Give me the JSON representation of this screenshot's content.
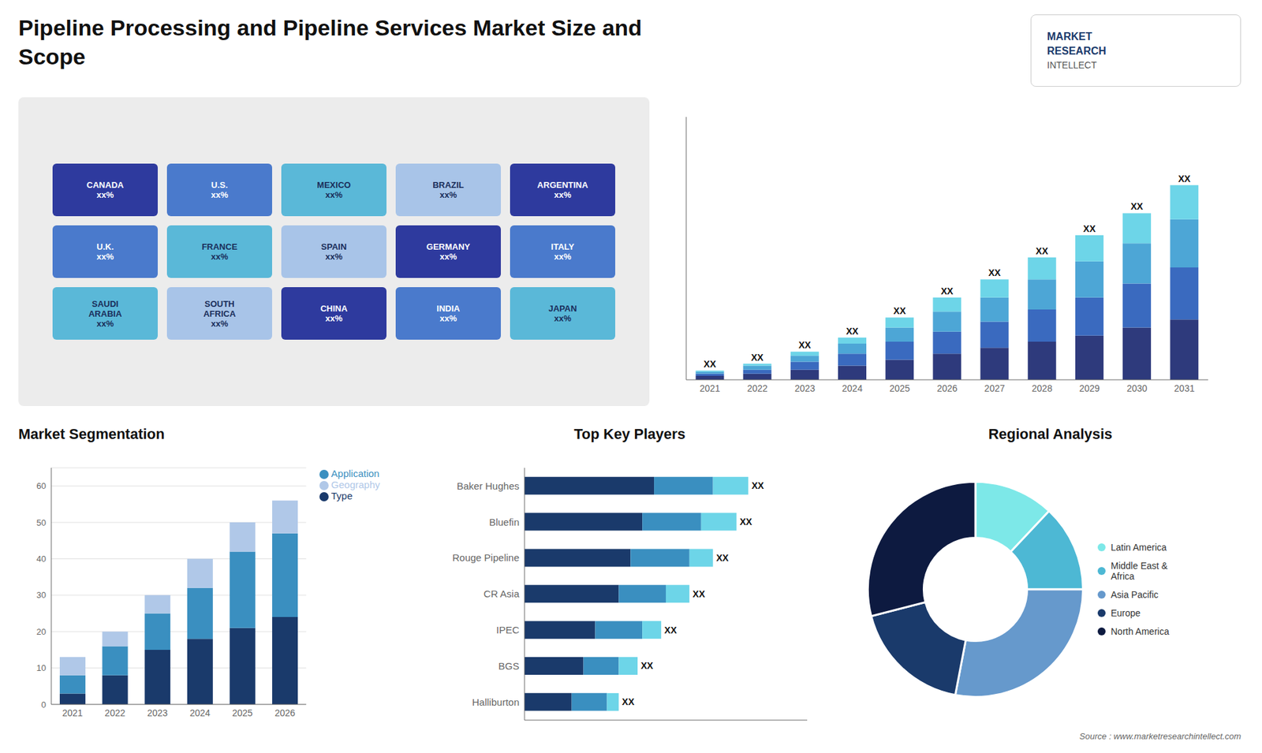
{
  "title": "Pipeline Processing and Pipeline Services Market Size and\nScope",
  "annotations": [
    "MARKET",
    "RESEARCH",
    "INTELLECT",
    "Source : www.marketresearchintellect.com"
  ],
  "chart_data": [
    {
      "type": "map",
      "annotations": [
        "CANADA\nxx%",
        "U.S.\nxx%",
        "MEXICO\nxx%",
        "BRAZIL\nxx%",
        "ARGENTINA\nxx%",
        "U.K.\nxx%",
        "FRANCE\nxx%",
        "SPAIN\nxx%",
        "GERMANY\nxx%",
        "ITALY\nxx%",
        "SAUDI\nARABIA\nxx%",
        "SOUTH\nAFRICA\nxx%",
        "CHINA\nxx%",
        "INDIA\nxx%",
        "JAPAN\nxx%"
      ]
    },
    {
      "type": "bar",
      "stacked": true,
      "categories": [
        "2021",
        "2022",
        "2023",
        "2024",
        "2025",
        "2026",
        "2027",
        "2028",
        "2029",
        "2030",
        "2031"
      ],
      "series": [
        {
          "color": "#2e3a7c",
          "values": [
            1.0,
            1.5,
            2.5,
            3.5,
            5.0,
            6.5,
            8.0,
            9.5,
            11.0,
            13.0,
            15.0
          ]
        },
        {
          "color": "#3a6abf",
          "values": [
            0.5,
            1.0,
            2.0,
            3.0,
            4.5,
            5.5,
            6.5,
            8.0,
            9.5,
            11.0,
            13.0
          ]
        },
        {
          "color": "#4da6d6",
          "values": [
            0.5,
            1.0,
            1.5,
            2.5,
            3.5,
            5.0,
            6.0,
            7.5,
            9.0,
            10.0,
            12.0
          ]
        },
        {
          "color": "#6dd5e8",
          "values": [
            0.3,
            0.5,
            1.0,
            1.5,
            2.5,
            3.5,
            4.5,
            5.5,
            6.5,
            7.5,
            8.5
          ]
        }
      ],
      "annotations": [
        "XX",
        "XX",
        "XX",
        "XX",
        "XX",
        "XX",
        "XX",
        "XX",
        "XX",
        "XX",
        "XX"
      ],
      "ylim": [
        0,
        65.475
      ],
      "tick_labels": "x"
    },
    {
      "type": "bar",
      "title": "Market Segmentation",
      "stacked": true,
      "categories": [
        "2021",
        "2022",
        "2023",
        "2024",
        "2025",
        "2026"
      ],
      "series": [
        {
          "name": "Type",
          "color": "#1a3a6b",
          "values": [
            3,
            8,
            15,
            18,
            21,
            24
          ]
        },
        {
          "name": "Application",
          "color": "#3a8fc0",
          "values": [
            5,
            8,
            10,
            14,
            21,
            23
          ]
        },
        {
          "name": "Geography",
          "color": "#b0c8e8",
          "values": [
            5,
            4,
            5,
            8,
            8,
            9
          ]
        }
      ],
      "ylim": [
        0,
        65
      ],
      "yticks": [
        0,
        10,
        20,
        30,
        40,
        50,
        60
      ],
      "grid": true,
      "legend": "right"
    },
    {
      "type": "bar",
      "title": "Top Key Players",
      "orientation": "horizontal",
      "stacked": true,
      "categories": [
        "Baker Hughes",
        "Bluefin",
        "Rouge Pipeline",
        "CR Asia",
        "IPEC",
        "BGS",
        "Halliburton"
      ],
      "series": [
        {
          "color": "#1a3a6b",
          "values": [
            5.5,
            5.0,
            4.5,
            4.0,
            3.0,
            2.5,
            2.0
          ]
        },
        {
          "color": "#3a8fc0",
          "values": [
            2.5,
            2.5,
            2.5,
            2.0,
            2.0,
            1.5,
            1.5
          ]
        },
        {
          "color": "#6dd5e8",
          "values": [
            1.5,
            1.5,
            1.0,
            1.0,
            0.8,
            0.8,
            0.5
          ]
        }
      ],
      "annotations": [
        "XX",
        "XX",
        "XX",
        "XX",
        "XX",
        "XX",
        "XX"
      ],
      "xlim": [
        0,
        12
      ],
      "tick_labels": "y"
    },
    {
      "type": "pie",
      "title": "Regional Analysis",
      "categories": [
        "Latin America",
        "Middle East &\nAfrica",
        "Asia Pacific",
        "Europe",
        "North America"
      ],
      "values": [
        12,
        13,
        28,
        18,
        29
      ],
      "colors": [
        "#7de8e8",
        "#4db8d4",
        "#6699cc",
        "#1a3a6b",
        "#0d1a40"
      ],
      "legend": "right"
    }
  ]
}
